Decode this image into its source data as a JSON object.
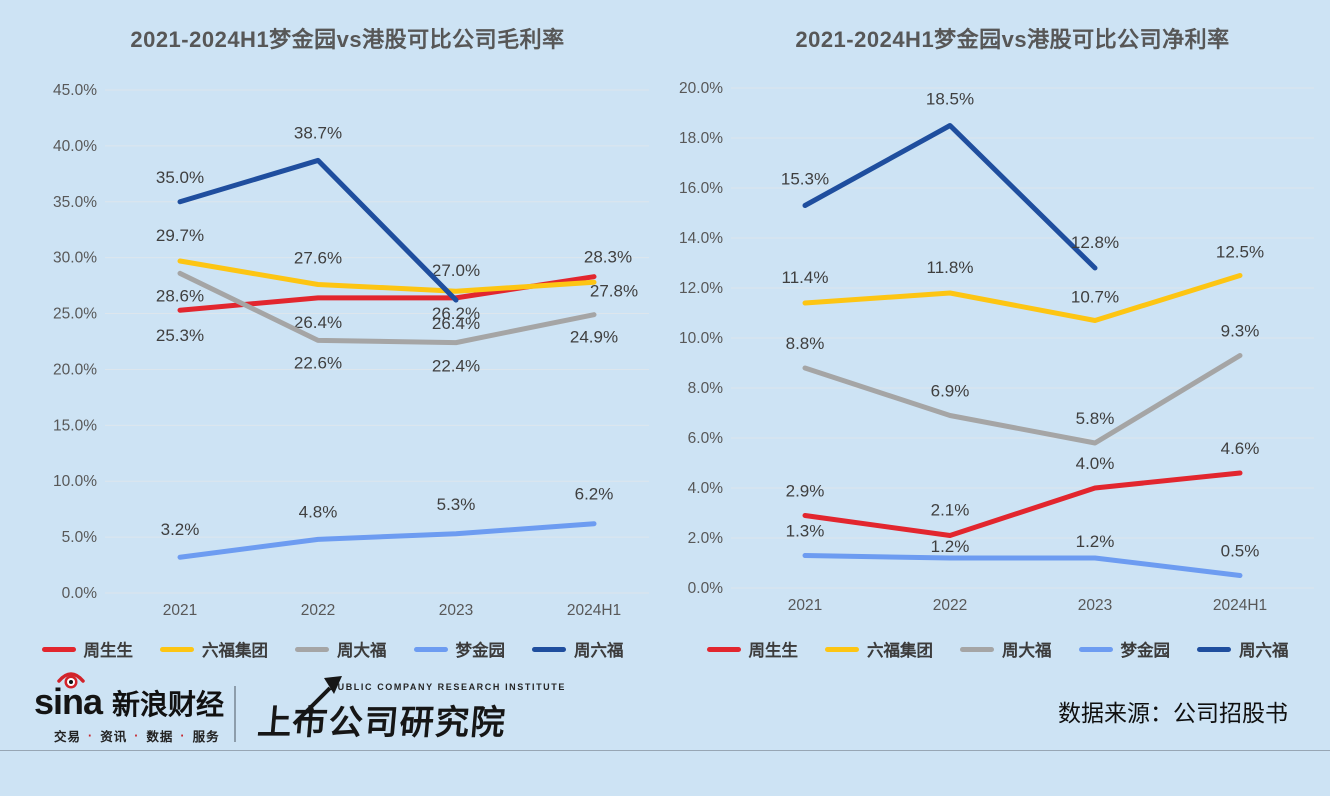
{
  "page": {
    "background": "#cde3f4",
    "text_color": "#575757"
  },
  "colors": {
    "zhoushengsheng_red": "#e2262e",
    "lufu_yellow": "#fdc513",
    "zhoudafu_gray": "#a5a5a5",
    "mengjinyuan_lightblue": "#6d9cf1",
    "zhouliufu_darkblue": "#1f4e9e",
    "gridline": "#dde6ed"
  },
  "chart_data": [
    {
      "type": "line",
      "title": "2021-2024H1梦金园vs港股可比公司毛利率",
      "categories": [
        "2021",
        "2022",
        "2023",
        "2024H1"
      ],
      "unit": "%",
      "ylim": [
        0,
        45
      ],
      "ytick_step": 5,
      "ytick_labels": [
        "0.0%",
        "5.0%",
        "10.0%",
        "15.0%",
        "20.0%",
        "25.0%",
        "30.0%",
        "35.0%",
        "40.0%",
        "45.0%"
      ],
      "grid": true,
      "legend_position": "bottom",
      "data_labels": true,
      "series": [
        {
          "name": "周生生",
          "color": "#e2262e",
          "values": [
            25.3,
            26.4,
            26.4,
            28.3
          ],
          "label_offsets": [
            [
              0,
              25
            ],
            [
              0,
              24
            ],
            [
              0,
              25
            ],
            [
              14,
              -20
            ]
          ]
        },
        {
          "name": "六福集团",
          "color": "#fdc513",
          "values": [
            29.7,
            27.6,
            27.0,
            27.8
          ],
          "label_offsets": [
            [
              0,
              -26
            ],
            [
              0,
              -27
            ],
            [
              0,
              -21
            ],
            [
              20,
              8
            ]
          ]
        },
        {
          "name": "周大福",
          "color": "#a5a5a5",
          "values": [
            28.6,
            22.6,
            22.4,
            24.9
          ],
          "label_offsets": [
            [
              0,
              22
            ],
            [
              0,
              22
            ],
            [
              0,
              23
            ],
            [
              0,
              22
            ]
          ]
        },
        {
          "name": "梦金园",
          "color": "#6d9cf1",
          "values": [
            3.2,
            4.8,
            5.3,
            6.2
          ],
          "label_offsets": [
            [
              0,
              -28
            ],
            [
              0,
              -28
            ],
            [
              0,
              -30
            ],
            [
              0,
              -30
            ]
          ]
        },
        {
          "name": "周六福",
          "color": "#1f4e9e",
          "values": [
            35.0,
            38.7,
            26.2,
            null
          ],
          "label_offsets": [
            [
              0,
              -25
            ],
            [
              0,
              -28
            ],
            [
              0,
              13
            ],
            [
              0,
              0
            ]
          ]
        }
      ]
    },
    {
      "type": "line",
      "title": "2021-2024H1梦金园vs港股可比公司净利率",
      "categories": [
        "2021",
        "2022",
        "2023",
        "2024H1"
      ],
      "unit": "%",
      "ylim": [
        0,
        20
      ],
      "ytick_step": 2,
      "ytick_labels": [
        "0.0%",
        "2.0%",
        "4.0%",
        "6.0%",
        "8.0%",
        "10.0%",
        "12.0%",
        "14.0%",
        "16.0%",
        "18.0%",
        "20.0%"
      ],
      "grid": true,
      "legend_position": "bottom",
      "data_labels": true,
      "series": [
        {
          "name": "周生生",
          "color": "#e2262e",
          "values": [
            2.9,
            2.1,
            4.0,
            4.6
          ],
          "label_offsets": [
            [
              0,
              -25
            ],
            [
              0,
              -26
            ],
            [
              0,
              -25
            ],
            [
              0,
              -25
            ]
          ]
        },
        {
          "name": "六福集团",
          "color": "#fdc513",
          "values": [
            11.4,
            11.8,
            10.7,
            12.5
          ],
          "label_offsets": [
            [
              0,
              -26
            ],
            [
              0,
              -26
            ],
            [
              0,
              -24
            ],
            [
              0,
              -24
            ]
          ]
        },
        {
          "name": "周大福",
          "color": "#a5a5a5",
          "values": [
            8.8,
            6.9,
            5.8,
            9.3
          ],
          "label_offsets": [
            [
              0,
              -25
            ],
            [
              0,
              -25
            ],
            [
              0,
              -25
            ],
            [
              0,
              -25
            ]
          ]
        },
        {
          "name": "梦金园",
          "color": "#6d9cf1",
          "values": [
            1.3,
            1.2,
            1.2,
            0.5
          ],
          "label_offsets": [
            [
              0,
              -25
            ],
            [
              0,
              -12
            ],
            [
              0,
              -17
            ],
            [
              0,
              -25
            ]
          ]
        },
        {
          "name": "周六福",
          "color": "#1f4e9e",
          "values": [
            15.3,
            18.5,
            12.8,
            null
          ],
          "label_offsets": [
            [
              0,
              -27
            ],
            [
              0,
              -27
            ],
            [
              0,
              -26
            ],
            [
              0,
              0
            ]
          ]
        }
      ]
    }
  ],
  "footer": {
    "sina": {
      "brand": "sina",
      "brand_cn": "新浪财经",
      "tagline_items": [
        "交易",
        "资讯",
        "数据",
        "服务"
      ]
    },
    "institute": {
      "en": "PUBLIC COMPANY RESEARCH INSTITUTE",
      "cn": "上市公司研究院"
    },
    "source_label": "数据来源：公司招股书"
  }
}
